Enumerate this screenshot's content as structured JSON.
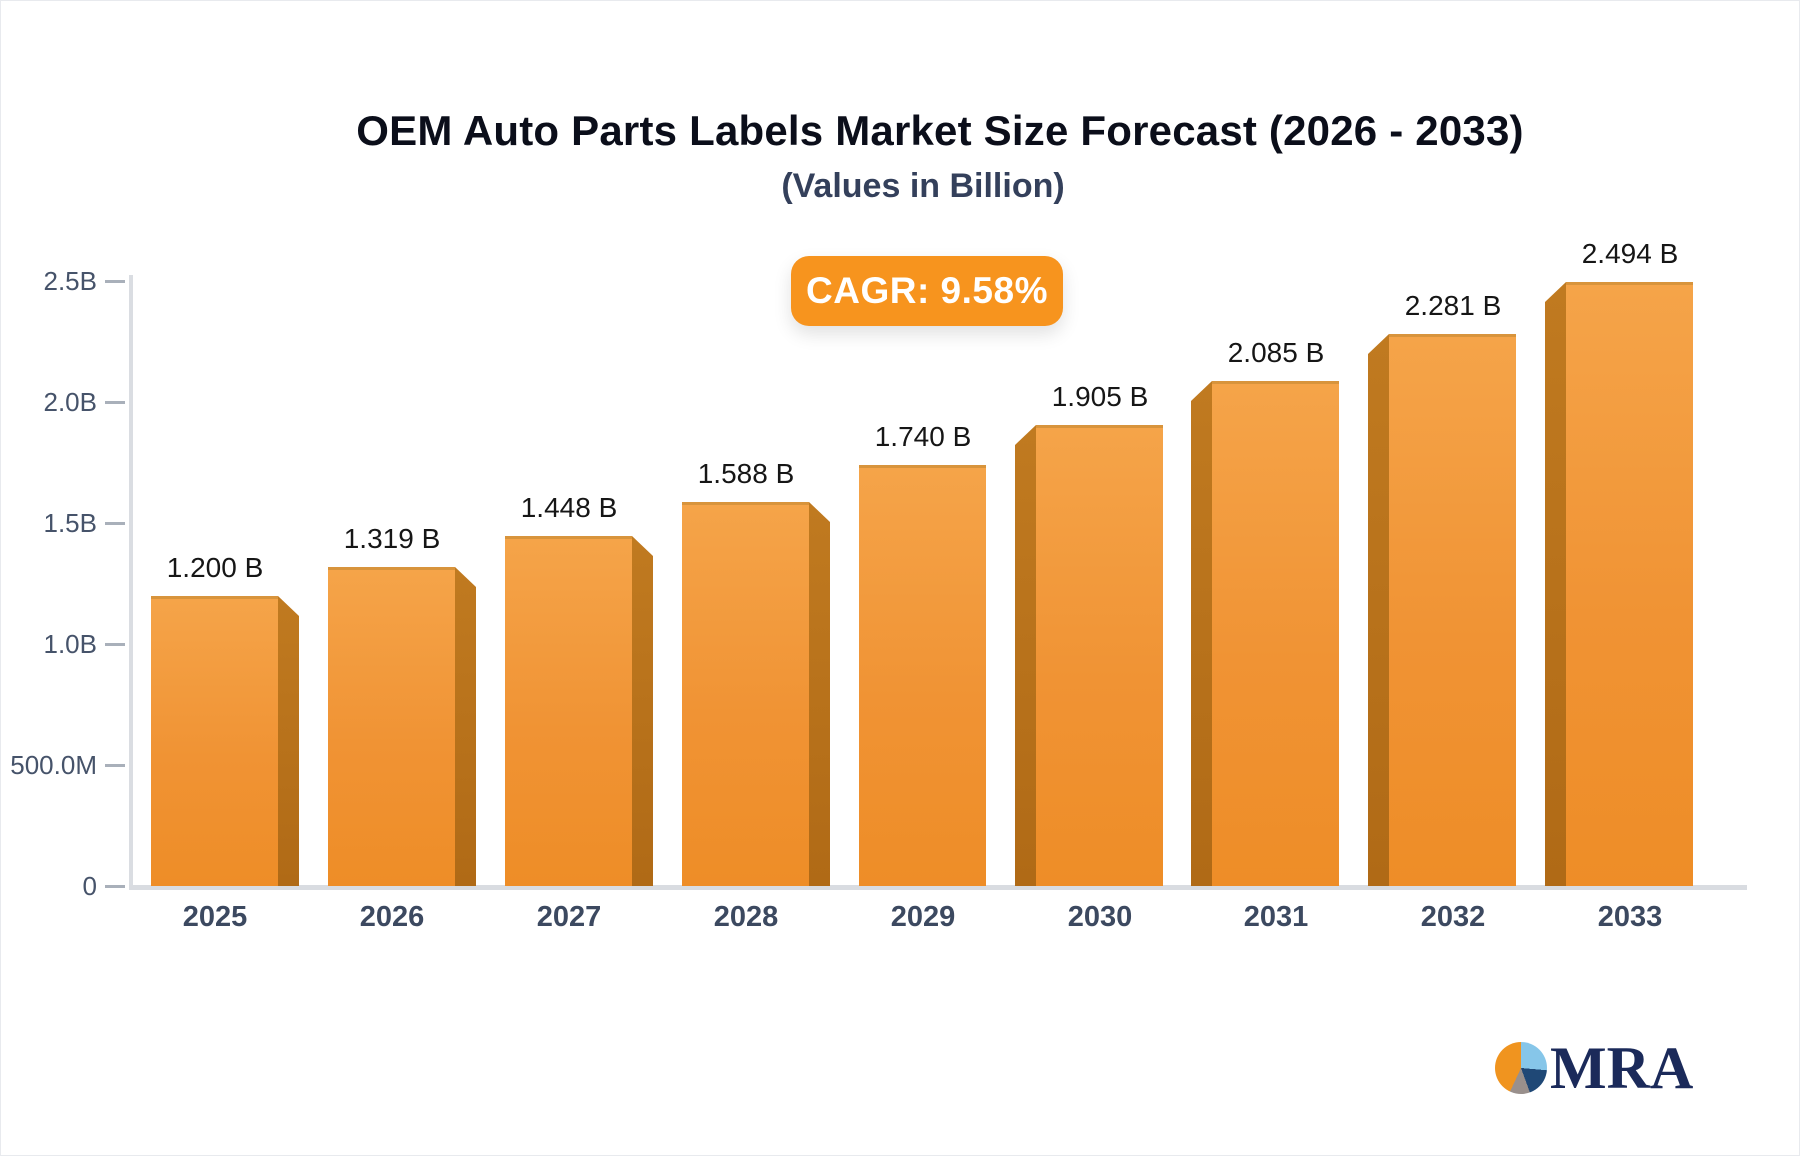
{
  "title": "OEM Auto Parts Labels Market Size Forecast (2026 - 2033)",
  "subtitle": "(Values in Billion)",
  "badge": {
    "label": "CAGR: 9.58%",
    "color": "#f7941e"
  },
  "logo": {
    "text": "MRA",
    "icon": "pie-chart-logo-icon",
    "text_color": "#1b2a5a",
    "pie_colors": [
      "#f0941f",
      "#86c6e9",
      "#1f4876",
      "#99908c"
    ]
  },
  "colors": {
    "bar_face": "#f09334",
    "bar_face_light": "#f5a449",
    "bar_face_dark": "#ee8d27",
    "bar_side": "#b06a16",
    "axis_line": "#d9dce1",
    "tick_text": "#46536a",
    "value_text": "#161616",
    "year_text": "#3c4960",
    "badge_bg": "#f7941e"
  },
  "chart_data": {
    "type": "bar",
    "title": "OEM Auto Parts Labels Market Size Forecast (2026 - 2033)",
    "subtitle": "(Values in Billion)",
    "annotation": "CAGR: 9.58%",
    "categories": [
      "2025",
      "2026",
      "2027",
      "2028",
      "2029",
      "2030",
      "2031",
      "2032",
      "2033"
    ],
    "values": [
      1.2,
      1.319,
      1.448,
      1.588,
      1.74,
      1.905,
      2.085,
      2.281,
      2.494
    ],
    "value_labels": [
      "1.200 B",
      "1.319 B",
      "1.448 B",
      "1.588 B",
      "1.740 B",
      "1.905 B",
      "2.085 B",
      "2.281 B",
      "2.494 B"
    ],
    "xlabel": "",
    "ylabel": "",
    "ylim": [
      0,
      2.5
    ],
    "yticks": [
      {
        "value": 0.0,
        "label": "0"
      },
      {
        "value": 0.5,
        "label": "500.0M"
      },
      {
        "value": 1.0,
        "label": "1.0B"
      },
      {
        "value": 1.5,
        "label": "1.5B"
      },
      {
        "value": 2.0,
        "label": "2.0B"
      },
      {
        "value": 2.5,
        "label": "2.5B"
      }
    ],
    "grid": false,
    "legend": false,
    "bar_style": "3d-perspective"
  }
}
